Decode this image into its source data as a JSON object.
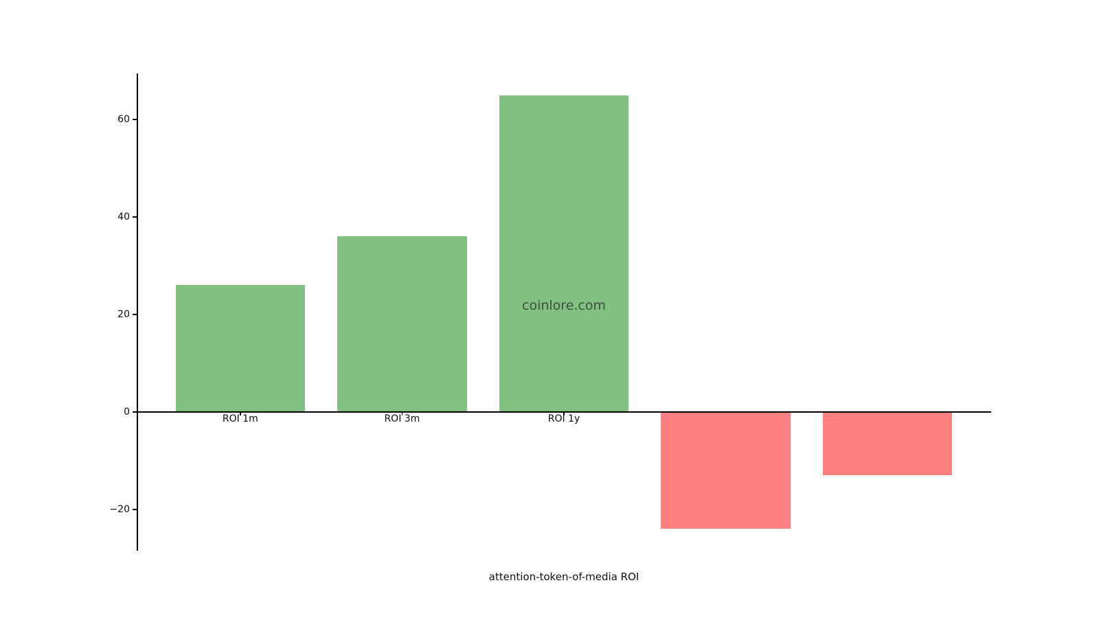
{
  "figure": {
    "background_color": "#ffffff"
  },
  "chart_data": {
    "type": "bar",
    "title": "attention-token-of-media ROI",
    "watermark": "coinlore.com",
    "categories": [
      "ROI 1m",
      "ROI 3m",
      "ROI 1y",
      "",
      ""
    ],
    "values": [
      26,
      36,
      65,
      -24,
      -13
    ],
    "series": [
      {
        "name": "ROI",
        "values": [
          26,
          36,
          65,
          -24,
          -13
        ]
      }
    ],
    "positive_color": "#80c080",
    "negative_color": "#ff8080",
    "axis_color": "#000000",
    "tick_text_color": "#0d0d0d",
    "watermark_color": "rgba(43,48,43,0.78)",
    "y_ticks": [
      {
        "value": 60,
        "label": "60"
      },
      {
        "value": 40,
        "label": "40"
      },
      {
        "value": 20,
        "label": "20"
      },
      {
        "value": 0,
        "label": "0"
      },
      {
        "value": -20,
        "label": "−20"
      }
    ],
    "ylim": [
      -28.45,
      69.45
    ],
    "xlim": [
      -0.64,
      4.64
    ],
    "bar_width_fraction": 0.8,
    "grid": false,
    "legend": null,
    "xlabel": "",
    "ylabel": "",
    "x_axis_position": "zero"
  }
}
